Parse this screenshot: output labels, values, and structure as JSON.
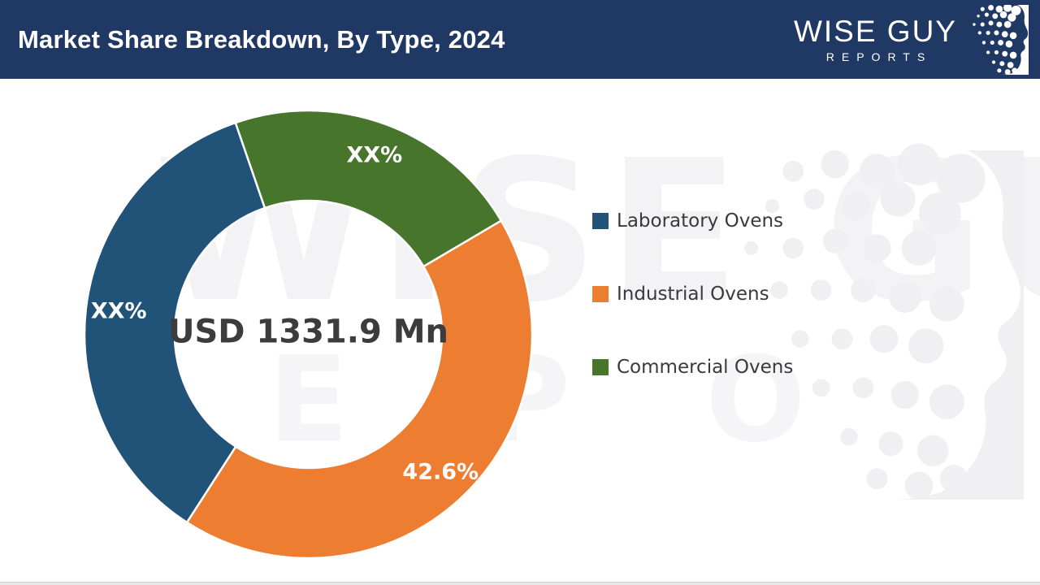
{
  "header": {
    "title": "Market Share Breakdown, By Type, 2024",
    "bg_color": "#1F3864",
    "logo": {
      "line1": "WISE GUY",
      "line2": "REPORTS"
    }
  },
  "watermark": {
    "line1": "WISE GU",
    "line2": "E P O"
  },
  "chart_data": {
    "type": "pie",
    "subtype": "donut",
    "title": "Market Share Breakdown, By Type, 2024",
    "center_label": "USD 1331.9 Mn",
    "start_angle_deg": 109,
    "counterclockwise": true,
    "legend_position": "right",
    "segments": [
      {
        "name": "Laboratory Ovens",
        "value_pct": 35.6,
        "displayed_label": "XX%",
        "color": "#215378"
      },
      {
        "name": "Industrial Ovens",
        "value_pct": 42.6,
        "displayed_label": "42.6%",
        "color": "#ED7D31"
      },
      {
        "name": "Commercial Ovens",
        "value_pct": 21.8,
        "displayed_label": "XX%",
        "color": "#46752B"
      }
    ]
  }
}
